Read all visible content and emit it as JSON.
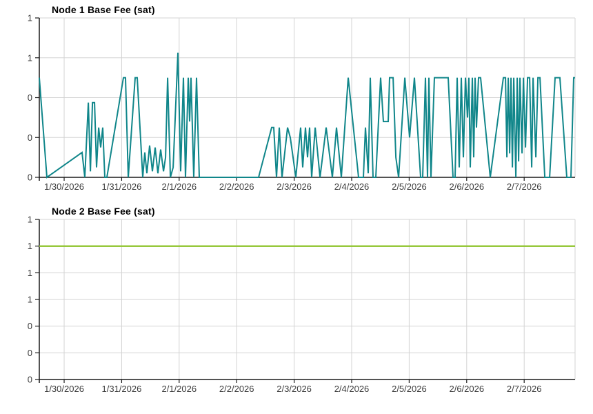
{
  "page": {
    "background": "#ffffff"
  },
  "chart_data": [
    {
      "type": "line",
      "title": "Node 1 Base Fee (sat)",
      "series_name": "Node 1 base fee",
      "unit": "sat",
      "line_color": "#10868A",
      "line_width": 2,
      "grid_color": "#d3d3d3",
      "axis_color": "#1a1a1a",
      "grid": true,
      "legend": "none",
      "ylim": [
        0,
        0.8
      ],
      "yticks": [
        {
          "v": 0.0,
          "label": "0"
        },
        {
          "v": 0.2,
          "label": "0"
        },
        {
          "v": 0.4,
          "label": "0"
        },
        {
          "v": 0.6,
          "label": "1"
        },
        {
          "v": 0.8,
          "label": "1"
        }
      ],
      "x_unit": "days since 1/30/2026",
      "xlim": [
        -0.432,
        8.885
      ],
      "xticks": [
        {
          "t": 0,
          "label": "1/30/2026"
        },
        {
          "t": 1,
          "label": "1/31/2026"
        },
        {
          "t": 2,
          "label": "2/1/2026"
        },
        {
          "t": 3,
          "label": "2/2/2026"
        },
        {
          "t": 4,
          "label": "2/3/2026"
        },
        {
          "t": 5,
          "label": "2/4/2026"
        },
        {
          "t": 6,
          "label": "2/5/2026"
        },
        {
          "t": 7,
          "label": "2/6/2026"
        },
        {
          "t": 8,
          "label": "2/7/2026"
        }
      ],
      "points": [
        [
          -0.432,
          0.5
        ],
        [
          -0.3,
          0
        ],
        [
          0.312,
          0.125
        ],
        [
          0.36,
          0
        ],
        [
          0.42,
          0.375
        ],
        [
          0.456,
          0.03
        ],
        [
          0.492,
          0.375
        ],
        [
          0.528,
          0.375
        ],
        [
          0.563,
          0.05
        ],
        [
          0.6,
          0.25
        ],
        [
          0.635,
          0.15
        ],
        [
          0.671,
          0.25
        ],
        [
          0.707,
          0
        ],
        [
          0.743,
          0
        ],
        [
          1.031,
          0.5
        ],
        [
          1.067,
          0.5
        ],
        [
          1.115,
          0
        ],
        [
          1.235,
          0.5
        ],
        [
          1.271,
          0.5
        ],
        [
          1.367,
          0
        ],
        [
          1.403,
          0.125
        ],
        [
          1.439,
          0.02
        ],
        [
          1.487,
          0.16
        ],
        [
          1.535,
          0.03
        ],
        [
          1.583,
          0.15
        ],
        [
          1.631,
          0.02
        ],
        [
          1.679,
          0.14
        ],
        [
          1.727,
          0.03
        ],
        [
          1.763,
          0.1
        ],
        [
          1.799,
          0.5
        ],
        [
          1.847,
          0
        ],
        [
          1.895,
          0.05
        ],
        [
          1.978,
          0.625
        ],
        [
          2.026,
          0.03
        ],
        [
          2.074,
          0.5
        ],
        [
          2.11,
          0
        ],
        [
          2.158,
          0.5
        ],
        [
          2.182,
          0.28
        ],
        [
          2.206,
          0.5
        ],
        [
          2.254,
          0
        ],
        [
          2.302,
          0.5
        ],
        [
          2.35,
          0
        ],
        [
          3.381,
          0
        ],
        [
          3.609,
          0.25
        ],
        [
          3.645,
          0.25
        ],
        [
          3.693,
          0
        ],
        [
          3.741,
          0.25
        ],
        [
          3.789,
          0
        ],
        [
          3.885,
          0.25
        ],
        [
          3.933,
          0.2
        ],
        [
          4.029,
          0
        ],
        [
          4.113,
          0.25
        ],
        [
          4.149,
          0.05
        ],
        [
          4.197,
          0.25
        ],
        [
          4.233,
          0.1
        ],
        [
          4.269,
          0.25
        ],
        [
          4.305,
          0
        ],
        [
          4.365,
          0.25
        ],
        [
          4.449,
          0
        ],
        [
          4.556,
          0.25
        ],
        [
          4.664,
          0
        ],
        [
          4.736,
          0.25
        ],
        [
          4.82,
          0
        ],
        [
          4.94,
          0.5
        ],
        [
          5.12,
          0
        ],
        [
          5.204,
          0
        ],
        [
          5.24,
          0.25
        ],
        [
          5.288,
          0.02
        ],
        [
          5.324,
          0.5
        ],
        [
          5.372,
          0
        ],
        [
          5.42,
          0
        ],
        [
          5.504,
          0.5
        ],
        [
          5.552,
          0.28
        ],
        [
          5.636,
          0.28
        ],
        [
          5.66,
          0.5
        ],
        [
          5.72,
          0.5
        ],
        [
          5.768,
          0.1
        ],
        [
          5.816,
          0
        ],
        [
          5.924,
          0.5
        ],
        [
          6.007,
          0.2
        ],
        [
          6.091,
          0.5
        ],
        [
          6.199,
          0
        ],
        [
          6.235,
          0
        ],
        [
          6.283,
          0.5
        ],
        [
          6.319,
          0
        ],
        [
          6.343,
          0.5
        ],
        [
          6.379,
          0
        ],
        [
          6.439,
          0.5
        ],
        [
          6.679,
          0.5
        ],
        [
          6.763,
          0
        ],
        [
          6.799,
          0
        ],
        [
          6.835,
          0.5
        ],
        [
          6.871,
          0.05
        ],
        [
          6.907,
          0.5
        ],
        [
          6.942,
          0.1
        ],
        [
          6.978,
          0.5
        ],
        [
          7.014,
          0.3
        ],
        [
          7.038,
          0.5
        ],
        [
          7.062,
          0.05
        ],
        [
          7.098,
          0.5
        ],
        [
          7.122,
          0.1
        ],
        [
          7.146,
          0.5
        ],
        [
          7.17,
          0.25
        ],
        [
          7.206,
          0.5
        ],
        [
          7.242,
          0.5
        ],
        [
          7.41,
          0
        ],
        [
          7.638,
          0.5
        ],
        [
          7.675,
          0.5
        ],
        [
          7.699,
          0.1
        ],
        [
          7.723,
          0.5
        ],
        [
          7.747,
          0.12
        ],
        [
          7.771,
          0.5
        ],
        [
          7.795,
          0.05
        ],
        [
          7.819,
          0.5
        ],
        [
          7.855,
          0
        ],
        [
          7.879,
          0.5
        ],
        [
          7.903,
          0.08
        ],
        [
          7.927,
          0.5
        ],
        [
          7.963,
          0.12
        ],
        [
          7.987,
          0.5
        ],
        [
          8.023,
          0.15
        ],
        [
          8.059,
          0.5
        ],
        [
          8.095,
          0.5
        ],
        [
          8.131,
          0.05
        ],
        [
          8.155,
          0.5
        ],
        [
          8.203,
          0.1
        ],
        [
          8.239,
          0.5
        ],
        [
          8.275,
          0.5
        ],
        [
          8.359,
          0
        ],
        [
          8.443,
          0
        ],
        [
          8.537,
          0.5
        ],
        [
          8.621,
          0.5
        ],
        [
          8.741,
          0
        ],
        [
          8.813,
          0
        ],
        [
          8.861,
          0.5
        ],
        [
          8.885,
          0.5
        ]
      ]
    },
    {
      "type": "line",
      "title": "Node 2 Base Fee (sat)",
      "series_name": "Node 2 base fee",
      "unit": "sat",
      "line_color": "#97C83C",
      "line_width": 2.5,
      "grid_color": "#d3d3d3",
      "axis_color": "#1a1a1a",
      "grid": true,
      "legend": "none",
      "ylim": [
        0,
        1.2
      ],
      "yticks": [
        {
          "v": 0.0,
          "label": "0"
        },
        {
          "v": 0.2,
          "label": "0"
        },
        {
          "v": 0.4,
          "label": "0"
        },
        {
          "v": 0.6,
          "label": "1"
        },
        {
          "v": 0.8,
          "label": "1"
        },
        {
          "v": 1.0,
          "label": "1"
        },
        {
          "v": 1.2,
          "label": "1"
        }
      ],
      "x_unit": "days since 1/30/2026",
      "xlim": [
        -0.432,
        8.885
      ],
      "xticks": [
        {
          "t": 0,
          "label": "1/30/2026"
        },
        {
          "t": 1,
          "label": "1/31/2026"
        },
        {
          "t": 2,
          "label": "2/1/2026"
        },
        {
          "t": 3,
          "label": "2/2/2026"
        },
        {
          "t": 4,
          "label": "2/3/2026"
        },
        {
          "t": 5,
          "label": "2/4/2026"
        },
        {
          "t": 6,
          "label": "2/5/2026"
        },
        {
          "t": 7,
          "label": "2/6/2026"
        },
        {
          "t": 8,
          "label": "2/7/2026"
        }
      ],
      "points": [
        [
          -0.432,
          1.0
        ],
        [
          8.885,
          1.0
        ]
      ]
    }
  ]
}
